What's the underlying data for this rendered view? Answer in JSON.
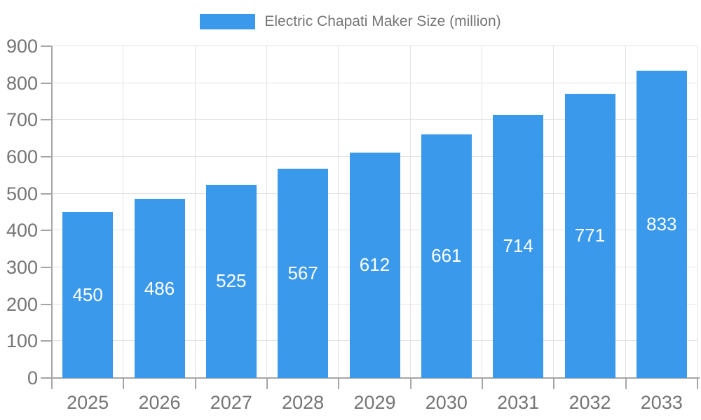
{
  "legend": {
    "label": "Electric Chapati Maker Size (million)"
  },
  "chart_data": {
    "type": "bar",
    "title": "Electric Chapati Maker Size (million)",
    "categories": [
      "2025",
      "2026",
      "2027",
      "2028",
      "2029",
      "2030",
      "2031",
      "2032",
      "2033"
    ],
    "values": [
      450,
      486,
      525,
      567,
      612,
      661,
      714,
      771,
      833
    ],
    "xlabel": "",
    "ylabel": "",
    "ylim": [
      0,
      900
    ],
    "ytick_step": 100,
    "ytick_labels": [
      "0",
      "100",
      "200",
      "300",
      "400",
      "500",
      "600",
      "700",
      "800",
      "900"
    ],
    "grid": true,
    "legend_position": "top-center",
    "colors": {
      "bar": "#3b99ec",
      "bar_value_label": "#ffffff",
      "grid_line": "#e2e2e2",
      "axis_line": "#a6a6a6",
      "tick_label": "#757575",
      "legend_text": "#757575"
    }
  }
}
